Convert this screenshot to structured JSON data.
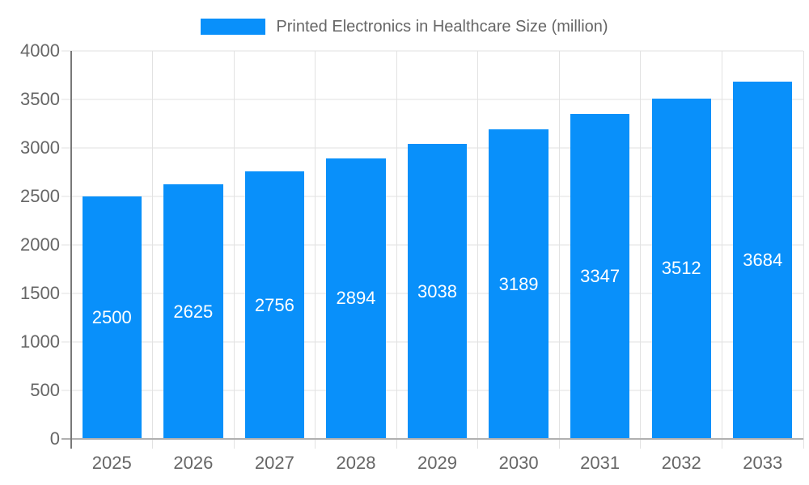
{
  "chart_data": {
    "type": "bar",
    "title": "Printed Electronics in Healthcare Size (million)",
    "legend": [
      {
        "label": "Printed Electronics in Healthcare Size (million)",
        "color": "#0990fa"
      }
    ],
    "legend_position": "top",
    "categories": [
      "2025",
      "2026",
      "2027",
      "2028",
      "2029",
      "2030",
      "2031",
      "2032",
      "2033"
    ],
    "series": [
      {
        "name": "Printed Electronics in Healthcare Size (million)",
        "values": [
          2500,
          2625,
          2756,
          2894,
          3038,
          3189,
          3347,
          3512,
          3684
        ]
      }
    ],
    "xlabel": "",
    "ylabel": "",
    "ylim": [
      0,
      4000
    ],
    "yticks": [
      0,
      500,
      1000,
      1500,
      2000,
      2500,
      3000,
      3500,
      4000
    ],
    "grid": true,
    "bar_value_labels_visible": true,
    "colors": {
      "bar": "#0990fa",
      "bar_label": "#ffffff",
      "axis_text": "#666666",
      "gridline": "#e2e2e2",
      "baseline": "#b0b0b0",
      "axis_line": "#787878",
      "background": "#ffffff"
    }
  }
}
